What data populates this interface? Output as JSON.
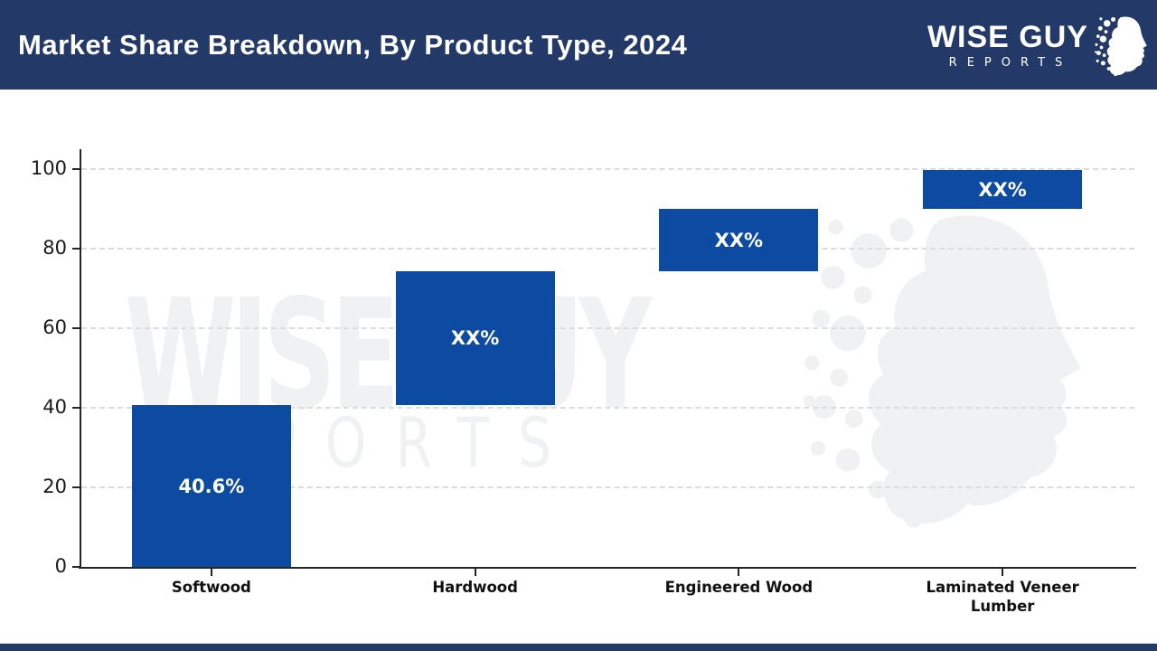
{
  "header": {
    "title": "Market Share Breakdown, By Product Type, 2024",
    "logo": {
      "name": "WISE GUY",
      "subtitle": "REPORTS"
    }
  },
  "watermark": {
    "line1": "WISE GUY",
    "line2": "REPORTS"
  },
  "chart_data": {
    "type": "bar",
    "subtype": "waterfall-floating-bars",
    "title": "Market Share Breakdown, By Product Type, 2024",
    "categories": [
      "Softwood",
      "Hardwood",
      "Engineered Wood",
      "Laminated Veneer Lumber"
    ],
    "segments": [
      {
        "category": "Softwood",
        "start": 0,
        "end": 40.6,
        "label": "40.6%"
      },
      {
        "category": "Hardwood",
        "start": 40.6,
        "end": 74.4,
        "label": "XX%"
      },
      {
        "category": "Engineered Wood",
        "start": 74.4,
        "end": 89.9,
        "label": "XX%"
      },
      {
        "category": "Laminated Veneer Lumber",
        "start": 89.9,
        "end": 99.8,
        "label": "XX%"
      }
    ],
    "ylabel": "",
    "xlabel": "",
    "yticks": [
      0,
      20,
      40,
      60,
      80,
      100
    ],
    "ylim": [
      0,
      105
    ],
    "grid": "horizontal-dashed",
    "legend": "none"
  },
  "colors": {
    "header_navy": "#233a68",
    "bar_blue": "#0c4ba1",
    "gridline": "#dcdcdc",
    "axis": "#262626",
    "watermark_gray": "#f0f1f3",
    "bar_label": "#ffffff"
  }
}
